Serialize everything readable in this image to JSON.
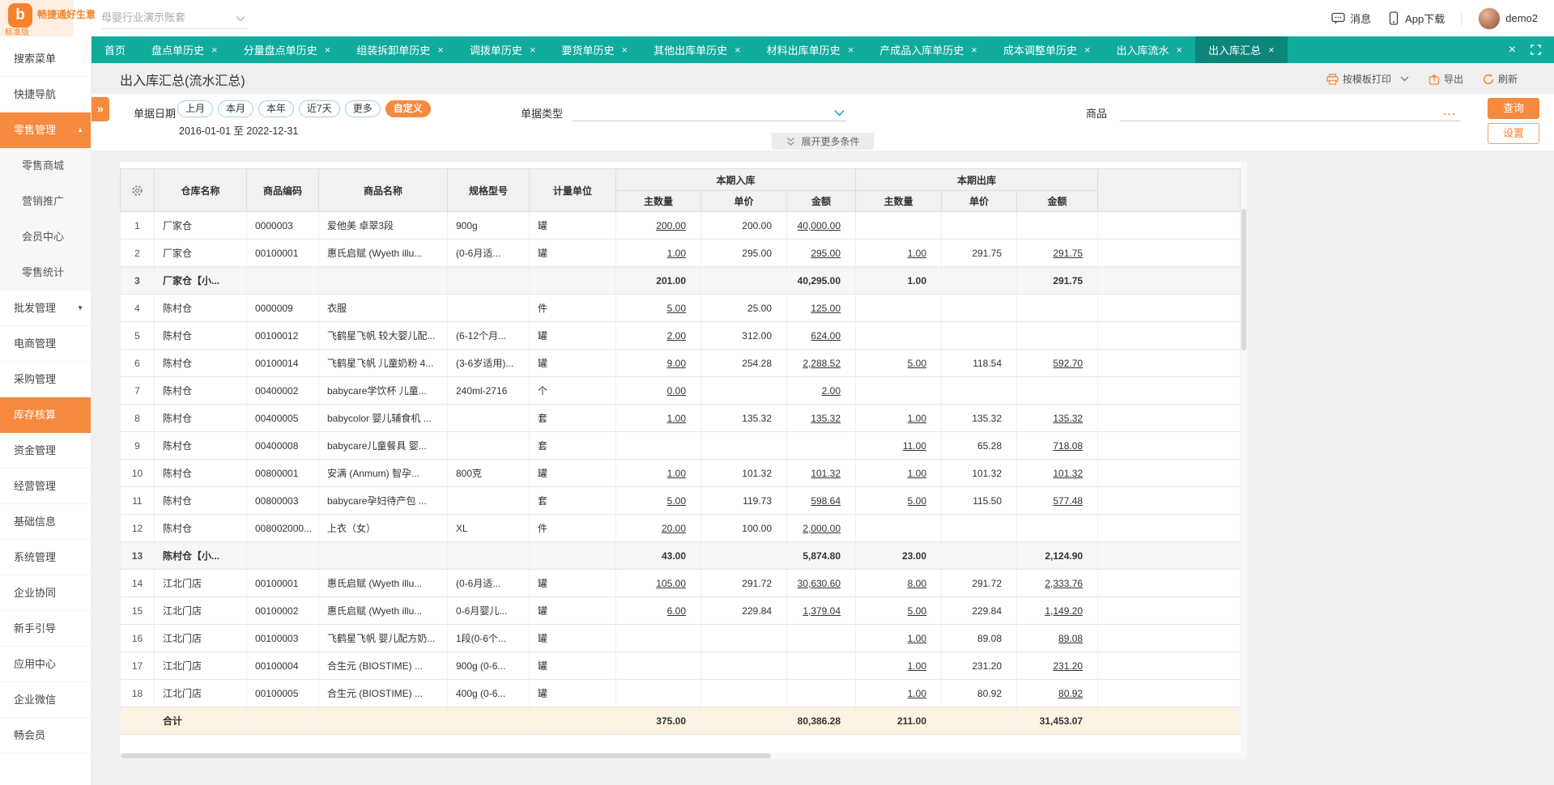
{
  "colors": {
    "teal": "#11ab9d",
    "teal_active_tab": "#0c857b",
    "orange": "#f68a3e",
    "logo_orange": "#f6822c",
    "total_row_bg": "#fdf3e2",
    "summary_row_bg": "#f6f6f6",
    "pill_border_blue": "#9fd0ee"
  },
  "brand": {
    "logo_letter": "b",
    "name": "畅捷通好生意",
    "edition": "标准版"
  },
  "topbar": {
    "account_select": "母婴行业演示账套",
    "messages": "消息",
    "app_download": "App下载",
    "username": "demo2"
  },
  "tabs": [
    {
      "label": "首页",
      "closable": false,
      "active": false
    },
    {
      "label": "盘点单历史",
      "closable": true,
      "active": false
    },
    {
      "label": "分量盘点单历史",
      "closable": true,
      "active": false
    },
    {
      "label": "组装拆卸单历史",
      "closable": true,
      "active": false
    },
    {
      "label": "调拨单历史",
      "closable": true,
      "active": false
    },
    {
      "label": "要货单历史",
      "closable": true,
      "active": false
    },
    {
      "label": "其他出库单历史",
      "closable": true,
      "active": false
    },
    {
      "label": "材料出库单历史",
      "closable": true,
      "active": false
    },
    {
      "label": "产成品入库单历史",
      "closable": true,
      "active": false
    },
    {
      "label": "成本调整单历史",
      "closable": true,
      "active": false
    },
    {
      "label": "出入库流水",
      "closable": true,
      "active": false
    },
    {
      "label": "出入库汇总",
      "closable": true,
      "active": true
    }
  ],
  "page": {
    "title": "出入库汇总(流水汇总)",
    "actions": {
      "print": "按模板打印",
      "export": "导出",
      "refresh": "刷新"
    }
  },
  "filters": {
    "date_label": "单据日期",
    "date_presets": [
      "上月",
      "本月",
      "本年",
      "近7天",
      "更多"
    ],
    "date_custom": "自定义",
    "date_range": "2016-01-01 至 2022-12-31",
    "doc_type_label": "单据类型",
    "doc_type_value": "",
    "product_label": "商品",
    "product_value": "",
    "ellipsis": "...",
    "search_button": "查询",
    "settings_button": "设置",
    "expand_more": "展开更多条件"
  },
  "sidebar": {
    "items": [
      {
        "label": "搜索菜单",
        "style": "item"
      },
      {
        "label": "快捷导航",
        "style": "item"
      },
      {
        "label": "零售管理",
        "style": "parent-active",
        "arrow": "up"
      },
      {
        "label": "零售商城",
        "style": "sub"
      },
      {
        "label": "营销推广",
        "style": "sub"
      },
      {
        "label": "会员中心",
        "style": "sub"
      },
      {
        "label": "零售统计",
        "style": "sub"
      },
      {
        "label": "批发管理",
        "style": "item",
        "arrow": "down"
      },
      {
        "label": "电商管理",
        "style": "item"
      },
      {
        "label": "采购管理",
        "style": "item"
      },
      {
        "label": "库存核算",
        "style": "active"
      },
      {
        "label": "资金管理",
        "style": "item"
      },
      {
        "label": "经营管理",
        "style": "item"
      },
      {
        "label": "基础信息",
        "style": "item"
      },
      {
        "label": "系统管理",
        "style": "item"
      },
      {
        "label": "企业协同",
        "style": "item"
      },
      {
        "label": "新手引导",
        "style": "item"
      },
      {
        "label": "应用中心",
        "style": "item"
      },
      {
        "label": "企业微信",
        "style": "item"
      },
      {
        "label": "畅会员",
        "style": "item"
      }
    ]
  },
  "table": {
    "group_headers": {
      "inbound": "本期入库",
      "outbound": "本期出库"
    },
    "columns": {
      "warehouse": "仓库名称",
      "code": "商品编码",
      "name": "商品名称",
      "spec": "规格型号",
      "unit": "计量单位"
    },
    "sub_columns": {
      "qty": "主数量",
      "price": "单价",
      "amount": "金额"
    },
    "rows": [
      {
        "no": "1",
        "kind": "data",
        "warehouse": "厂家仓",
        "code": "0000003",
        "name": "爱他美 卓翠3段",
        "spec": "900g",
        "unit": "罐",
        "in_qty": "200.00",
        "in_price": "200.00",
        "in_amount": "40,000.00",
        "out_qty": "",
        "out_price": "",
        "out_amount": ""
      },
      {
        "no": "2",
        "kind": "data",
        "warehouse": "厂家仓",
        "code": "00100001",
        "name": "惠氏启赋 (Wyeth illu...",
        "spec": "(0-6月适...",
        "unit": "罐",
        "in_qty": "1.00",
        "in_price": "295.00",
        "in_amount": "295.00",
        "out_qty": "1.00",
        "out_price": "291.75",
        "out_amount": "291.75"
      },
      {
        "no": "3",
        "kind": "summary",
        "warehouse": "厂家仓【小...",
        "code": "",
        "name": "",
        "spec": "",
        "unit": "",
        "in_qty": "201.00",
        "in_price": "",
        "in_amount": "40,295.00",
        "out_qty": "1.00",
        "out_price": "",
        "out_amount": "291.75"
      },
      {
        "no": "4",
        "kind": "data",
        "warehouse": "陈村仓",
        "code": "0000009",
        "name": "衣服",
        "spec": "",
        "unit": "件",
        "in_qty": "5.00",
        "in_price": "25.00",
        "in_amount": "125.00",
        "out_qty": "",
        "out_price": "",
        "out_amount": ""
      },
      {
        "no": "5",
        "kind": "data",
        "warehouse": "陈村仓",
        "code": "00100012",
        "name": "飞鹤星飞帆 较大婴儿配...",
        "spec": "(6-12个月...",
        "unit": "罐",
        "in_qty": "2.00",
        "in_price": "312.00",
        "in_amount": "624.00",
        "out_qty": "",
        "out_price": "",
        "out_amount": ""
      },
      {
        "no": "6",
        "kind": "data",
        "warehouse": "陈村仓",
        "code": "00100014",
        "name": "飞鹤星飞帆 儿童奶粉 4...",
        "spec": "(3-6岁适用)...",
        "unit": "罐",
        "in_qty": "9.00",
        "in_price": "254.28",
        "in_amount": "2,288.52",
        "out_qty": "5.00",
        "out_price": "118.54",
        "out_amount": "592.70"
      },
      {
        "no": "7",
        "kind": "data",
        "warehouse": "陈村仓",
        "code": "00400002",
        "name": "babycare学饮杯 儿童...",
        "spec": "240ml-2716",
        "unit": "个",
        "in_qty": "0.00",
        "in_price": "",
        "in_amount": "2.00",
        "out_qty": "",
        "out_price": "",
        "out_amount": ""
      },
      {
        "no": "8",
        "kind": "data",
        "warehouse": "陈村仓",
        "code": "00400005",
        "name": "babycolor 婴儿辅食机 ...",
        "spec": "",
        "unit": "套",
        "in_qty": "1.00",
        "in_price": "135.32",
        "in_amount": "135.32",
        "out_qty": "1.00",
        "out_price": "135.32",
        "out_amount": "135.32"
      },
      {
        "no": "9",
        "kind": "data",
        "warehouse": "陈村仓",
        "code": "00400008",
        "name": "babycare儿童餐具 婴...",
        "spec": "",
        "unit": "套",
        "in_qty": "",
        "in_price": "",
        "in_amount": "",
        "out_qty": "11.00",
        "out_price": "65.28",
        "out_amount": "718.08"
      },
      {
        "no": "10",
        "kind": "data",
        "warehouse": "陈村仓",
        "code": "00800001",
        "name": "安满 (Anmum) 智孕...",
        "spec": "800克",
        "unit": "罐",
        "in_qty": "1.00",
        "in_price": "101.32",
        "in_amount": "101.32",
        "out_qty": "1.00",
        "out_price": "101.32",
        "out_amount": "101.32"
      },
      {
        "no": "11",
        "kind": "data",
        "warehouse": "陈村仓",
        "code": "00800003",
        "name": "babycare孕妇待产包 ...",
        "spec": "",
        "unit": "套",
        "in_qty": "5.00",
        "in_price": "119.73",
        "in_amount": "598.64",
        "out_qty": "5.00",
        "out_price": "115.50",
        "out_amount": "577.48"
      },
      {
        "no": "12",
        "kind": "data",
        "warehouse": "陈村仓",
        "code": "008002000...",
        "name": "上衣（女）",
        "spec": "XL",
        "unit": "件",
        "in_qty": "20.00",
        "in_price": "100.00",
        "in_amount": "2,000.00",
        "out_qty": "",
        "out_price": "",
        "out_amount": ""
      },
      {
        "no": "13",
        "kind": "summary",
        "warehouse": "陈村仓【小...",
        "code": "",
        "name": "",
        "spec": "",
        "unit": "",
        "in_qty": "43.00",
        "in_price": "",
        "in_amount": "5,874.80",
        "out_qty": "23.00",
        "out_price": "",
        "out_amount": "2,124.90"
      },
      {
        "no": "14",
        "kind": "data",
        "warehouse": "江北门店",
        "code": "00100001",
        "name": "惠氏启赋 (Wyeth illu...",
        "spec": "(0-6月适...",
        "unit": "罐",
        "in_qty": "105.00",
        "in_price": "291.72",
        "in_amount": "30,630.60",
        "out_qty": "8.00",
        "out_price": "291.72",
        "out_amount": "2,333.76"
      },
      {
        "no": "15",
        "kind": "data",
        "warehouse": "江北门店",
        "code": "00100002",
        "name": "惠氏启赋 (Wyeth illu...",
        "spec": "0-6月婴儿...",
        "unit": "罐",
        "in_qty": "6.00",
        "in_price": "229.84",
        "in_amount": "1,379.04",
        "out_qty": "5.00",
        "out_price": "229.84",
        "out_amount": "1,149.20"
      },
      {
        "no": "16",
        "kind": "data",
        "warehouse": "江北门店",
        "code": "00100003",
        "name": "飞鹤星飞帆 婴儿配方奶...",
        "spec": "1段(0-6个...",
        "unit": "罐",
        "in_qty": "",
        "in_price": "",
        "in_amount": "",
        "out_qty": "1.00",
        "out_price": "89.08",
        "out_amount": "89.08"
      },
      {
        "no": "17",
        "kind": "data",
        "warehouse": "江北门店",
        "code": "00100004",
        "name": "合生元 (BIOSTIME) ...",
        "spec": "900g (0-6...",
        "unit": "罐",
        "in_qty": "",
        "in_price": "",
        "in_amount": "",
        "out_qty": "1.00",
        "out_price": "231.20",
        "out_amount": "231.20"
      },
      {
        "no": "18",
        "kind": "data",
        "warehouse": "江北门店",
        "code": "00100005",
        "name": "合生元 (BIOSTIME) ...",
        "spec": "400g (0-6...",
        "unit": "罐",
        "in_qty": "",
        "in_price": "",
        "in_amount": "",
        "out_qty": "1.00",
        "out_price": "80.92",
        "out_amount": "80.92"
      },
      {
        "no": "",
        "kind": "total",
        "warehouse": "合计",
        "code": "",
        "name": "",
        "spec": "",
        "unit": "",
        "in_qty": "375.00",
        "in_price": "",
        "in_amount": "80,386.28",
        "out_qty": "211.00",
        "out_price": "",
        "out_amount": "31,453.07"
      }
    ]
  }
}
